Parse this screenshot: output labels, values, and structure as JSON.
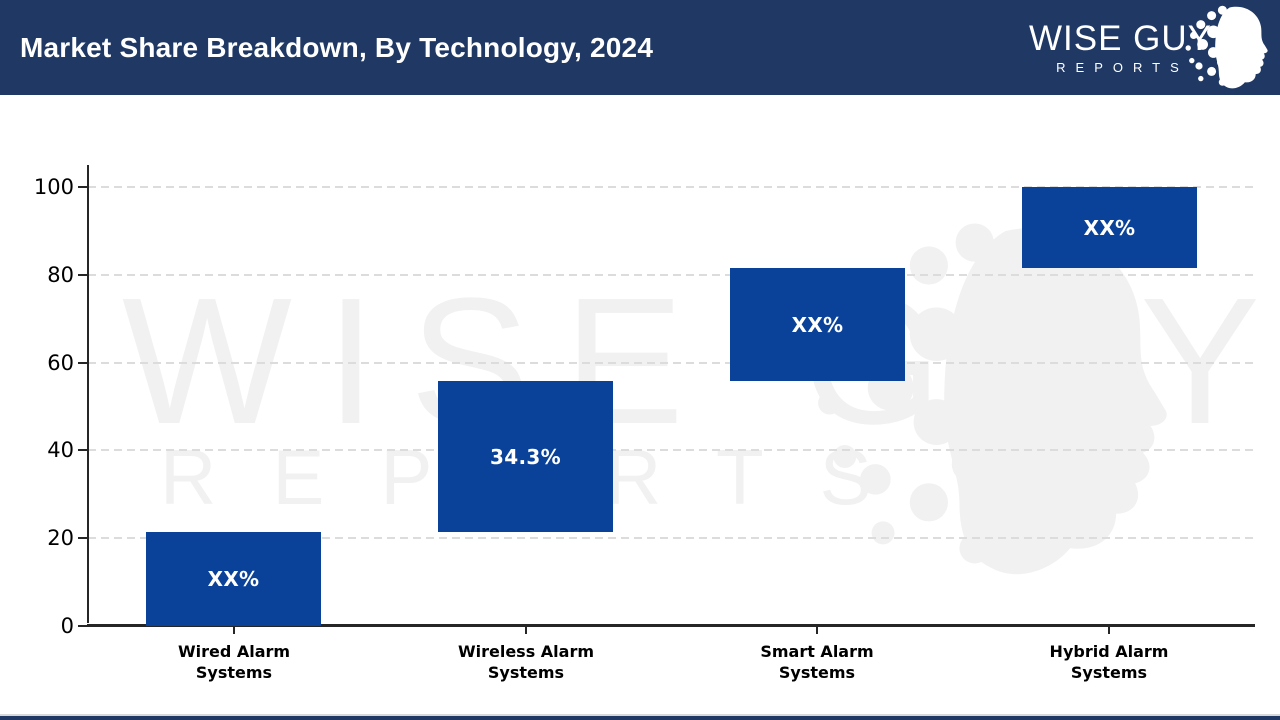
{
  "header": {
    "title": "Market Share Breakdown, By Technology, 2024",
    "bg_color": "#1F3864"
  },
  "logo": {
    "name_line": "WISE GUY",
    "sub_line": "REPORTS",
    "icon": "dotted-face-profile"
  },
  "watermark": {
    "line1": "WISE GUY",
    "line2": "REPORTS",
    "icon": "dotted-face-profile",
    "color": "#f1f1f2"
  },
  "chart_data": {
    "type": "bar",
    "subtype": "waterfall",
    "title": "Market Share Breakdown, By Technology, 2024",
    "xlabel": "",
    "ylabel": "",
    "ylim": [
      0,
      100
    ],
    "yticks": [
      0,
      20,
      40,
      60,
      80,
      100
    ],
    "grid": "horizontal dashed",
    "bar_color": "#0A4299",
    "categories": [
      {
        "lines": [
          "Wired Alarm",
          "Systems"
        ]
      },
      {
        "lines": [
          "Wireless Alarm",
          "Systems"
        ]
      },
      {
        "lines": [
          "Smart Alarm",
          "Systems"
        ]
      },
      {
        "lines": [
          "Hybrid Alarm",
          "Systems"
        ]
      }
    ],
    "segments": [
      {
        "start": 0,
        "end": 21.5,
        "value_shown": "XX%",
        "label": "XX%"
      },
      {
        "start": 21.5,
        "end": 55.8,
        "value_shown": "34.3%",
        "label": "34.3%"
      },
      {
        "start": 55.8,
        "end": 81.5,
        "value_shown": "XX%",
        "label": "XX%"
      },
      {
        "start": 81.5,
        "end": 100,
        "value_shown": "XX%",
        "label": "XX%"
      }
    ]
  }
}
